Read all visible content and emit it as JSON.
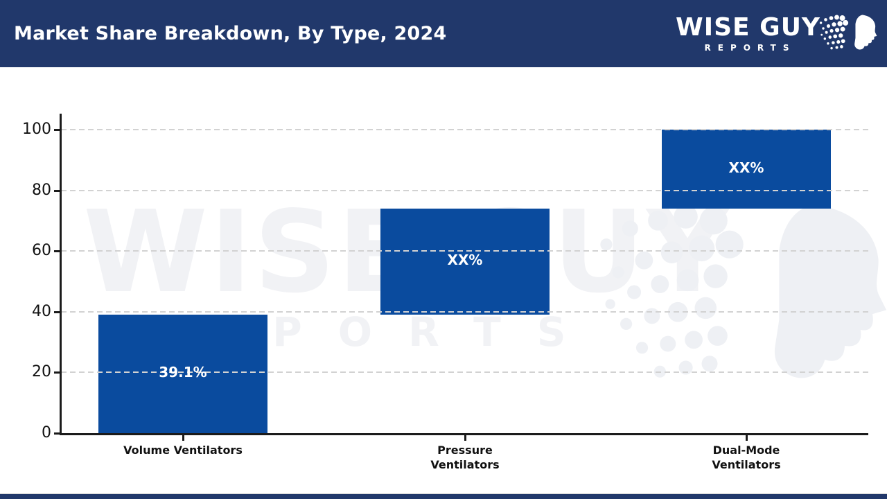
{
  "header": {
    "title": "Market Share Breakdown, By Type, 2024",
    "logo": {
      "name": "WISE GUY",
      "subname": "REPORTS"
    }
  },
  "watermark": {
    "big_text": "WISE GUY",
    "sub_text": "REPORTS"
  },
  "colors": {
    "header_bg": "#21386b",
    "bar": "#0a4b9e",
    "grid": "#d2d2d2",
    "axis": "#1b1b1b",
    "text": "#111111",
    "bar_label": "#ffffff",
    "watermark": "#f1f2f5",
    "footer_bar": "#21386b"
  },
  "chart_data": {
    "type": "bar",
    "subtype": "waterfall",
    "title": "Market Share Breakdown, By Type, 2024",
    "categories": [
      "Volume Ventilators",
      "Pressure Ventilators",
      "Dual-Mode Ventilators"
    ],
    "segments": [
      {
        "category_lines": [
          "Volume Ventilators"
        ],
        "start": 0,
        "end": 39.1,
        "label": "39.1%"
      },
      {
        "category_lines": [
          "Pressure",
          "Ventilators"
        ],
        "start": 39.1,
        "end": 74,
        "label": "XX%"
      },
      {
        "category_lines": [
          "Dual-Mode",
          "Ventilators"
        ],
        "start": 74,
        "end": 100,
        "label": "XX%"
      }
    ],
    "yticks": [
      0,
      20,
      40,
      60,
      80,
      100
    ],
    "ylim": [
      0,
      105
    ],
    "xlabel": "",
    "ylabel": "",
    "grid": "horizontal-dashed",
    "legend": "none",
    "bar_color": "#0a4b9e"
  }
}
